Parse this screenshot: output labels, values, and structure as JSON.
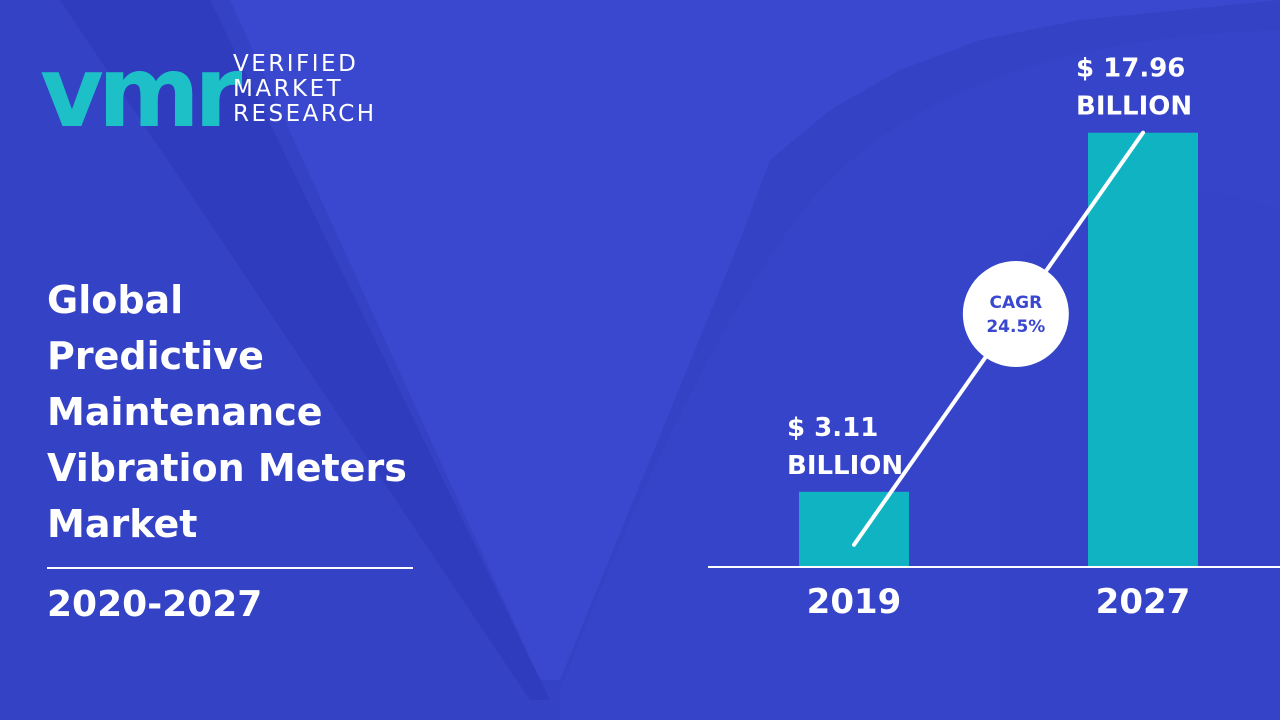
{
  "brand": {
    "logo_letters": "vmr",
    "line1": "VERIFIED",
    "line2": "MARKET",
    "line3": "RESEARCH"
  },
  "title_lines": [
    "Global",
    "Predictive",
    "Maintenance",
    "Vibration Meters",
    "Market"
  ],
  "period": "2020-2027",
  "colors": {
    "background": "#3a48cf",
    "bar": "#0fb3c2",
    "text": "#ffffff"
  },
  "chart_data": {
    "type": "bar",
    "categories": [
      "2019",
      "2027"
    ],
    "values": [
      3.11,
      17.96
    ],
    "value_labels": [
      [
        "$ 3.11",
        "BILLION"
      ],
      [
        "$ 17.96",
        "BILLION"
      ]
    ],
    "ylim": [
      0,
      22
    ],
    "annotation": {
      "line1": "CAGR",
      "line2": "24.5%"
    }
  }
}
